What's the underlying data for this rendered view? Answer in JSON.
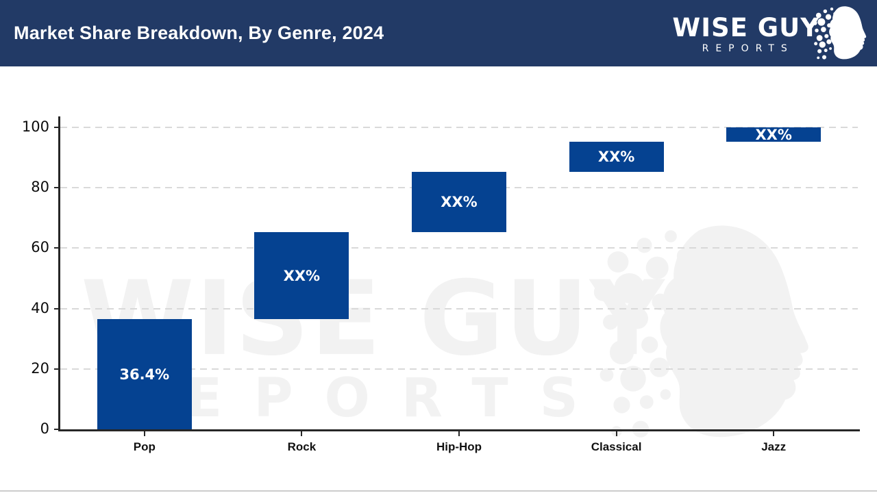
{
  "header": {
    "title": "Market Share Breakdown, By Genre, 2024",
    "logo": {
      "wordmark": "WISE GUY",
      "subtext": "REPORTS"
    }
  },
  "watermark": {
    "line1": "WISE GUY",
    "line2": "REPORTS"
  },
  "colors": {
    "header_background": "#223a66",
    "bar_blue": "#054291",
    "title_text": "#ffffff",
    "bar_label_text": "#ffffff",
    "gridline": "#d9d9d9",
    "axis": "#262626",
    "tick_text": "#0d0d0d",
    "watermark": "#f2f2f2",
    "bottom_rule": "#cccccc"
  },
  "chart_data": {
    "type": "bar",
    "subtype": "waterfall",
    "title": "Market Share Breakdown, By Genre, 2024",
    "categories": [
      "Pop",
      "Rock",
      "Hip-Hop",
      "Classical",
      "Jazz"
    ],
    "segments": [
      {
        "category": "Pop",
        "start": 0,
        "end": 36.4,
        "label": "36.4%"
      },
      {
        "category": "Rock",
        "start": 36.4,
        "end": 65.2,
        "label": "XX%"
      },
      {
        "category": "Hip-Hop",
        "start": 65.2,
        "end": 85.2,
        "label": "XX%"
      },
      {
        "category": "Classical",
        "start": 85.2,
        "end": 95.2,
        "label": "XX%"
      },
      {
        "category": "Jazz",
        "start": 95.2,
        "end": 100,
        "label": "XX%"
      }
    ],
    "yticks": [
      0,
      20,
      40,
      60,
      80,
      100
    ],
    "ylim": [
      0,
      103.6
    ],
    "xlabel": "",
    "ylabel": "",
    "grid": "dashed-horizontal",
    "legend": "none",
    "bar_color": "#054291",
    "label_color": "#ffffff"
  }
}
